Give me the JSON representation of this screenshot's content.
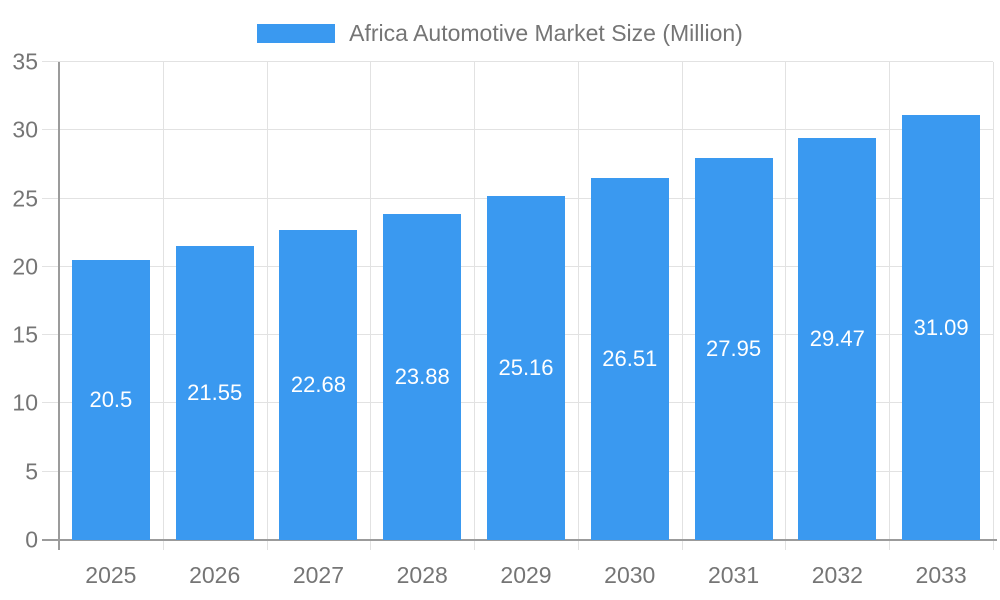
{
  "chart_data": {
    "type": "bar",
    "title": "Africa Automotive Market Size (Million)",
    "legend": {
      "label": "Africa Automotive Market Size (Million)",
      "position": "top"
    },
    "categories": [
      "2025",
      "2026",
      "2027",
      "2028",
      "2029",
      "2030",
      "2031",
      "2032",
      "2033"
    ],
    "series": [
      {
        "name": "Africa Automotive Market Size (Million)",
        "values": [
          20.5,
          21.55,
          22.68,
          23.88,
          25.16,
          26.51,
          27.95,
          29.47,
          31.09
        ]
      }
    ],
    "value_labels": [
      "20.5",
      "21.55",
      "22.68",
      "23.88",
      "25.16",
      "26.51",
      "27.95",
      "29.47",
      "31.09"
    ],
    "xlabel": "",
    "ylabel": "",
    "ylim": [
      0,
      35
    ],
    "y_ticks": [
      0,
      5,
      10,
      15,
      20,
      25,
      30,
      35
    ],
    "grid": true,
    "value_label_position": "inside-middle",
    "colors": {
      "bar": "#3a99f0",
      "grid": "#e2e2e2",
      "axis": "#9b9b9b",
      "tick_text": "#757575",
      "value_text": "#ffffff",
      "background": "#ffffff"
    }
  }
}
